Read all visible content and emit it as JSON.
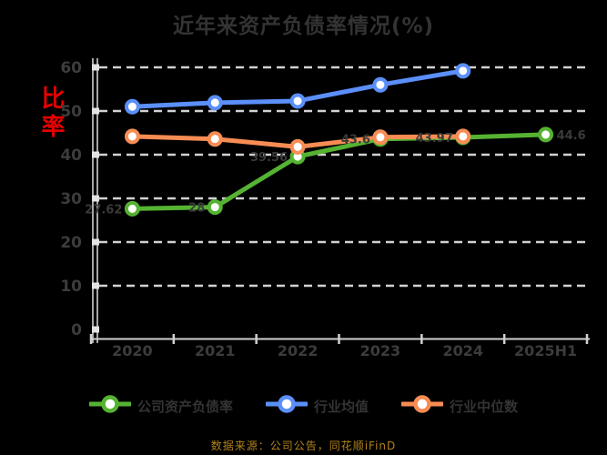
{
  "header": {
    "title_note": "bound from chart_data.title"
  },
  "footer": {
    "text": "数据来源：公司公告，同花顺iFinD"
  },
  "colors": {
    "background": "#000000",
    "title_text": "#333333",
    "axis_line": "#cfcfcf",
    "grid_line": "#d2d2d2",
    "tick_label": "#3c3c3c",
    "data_label": "#3a3a3a",
    "y_unit_label": "#e60000",
    "footer_text": "#b3831c"
  },
  "chart_data": {
    "type": "line",
    "title": "近年来资产负债率情况(%)",
    "ylabel": "比率",
    "categories": [
      "2020",
      "2021",
      "2022",
      "2023",
      "2024",
      "2025H1"
    ],
    "series": [
      {
        "name": "公司资产负债率",
        "color": "#55b332",
        "values": [
          27.62,
          28,
          39.56,
          43.6,
          43.97,
          44.6
        ],
        "labels": [
          "27.62",
          "28",
          "39.56",
          "43.6",
          "43.97",
          "44.6"
        ]
      },
      {
        "name": "行业均值",
        "color": "#5b8ff9",
        "values": [
          51.0,
          51.9,
          52.3,
          56.0,
          59.2,
          null
        ],
        "labels": null
      },
      {
        "name": "行业中位数",
        "color": "#f78d54",
        "values": [
          44.2,
          43.6,
          41.8,
          44.0,
          44.2,
          null
        ],
        "labels": null
      }
    ],
    "ylim": [
      0,
      60
    ],
    "yticks": [
      0,
      10,
      20,
      30,
      40,
      50,
      60
    ],
    "grid": "dashed-horizontal",
    "legend_position": "bottom",
    "marker": "ring-circle"
  }
}
